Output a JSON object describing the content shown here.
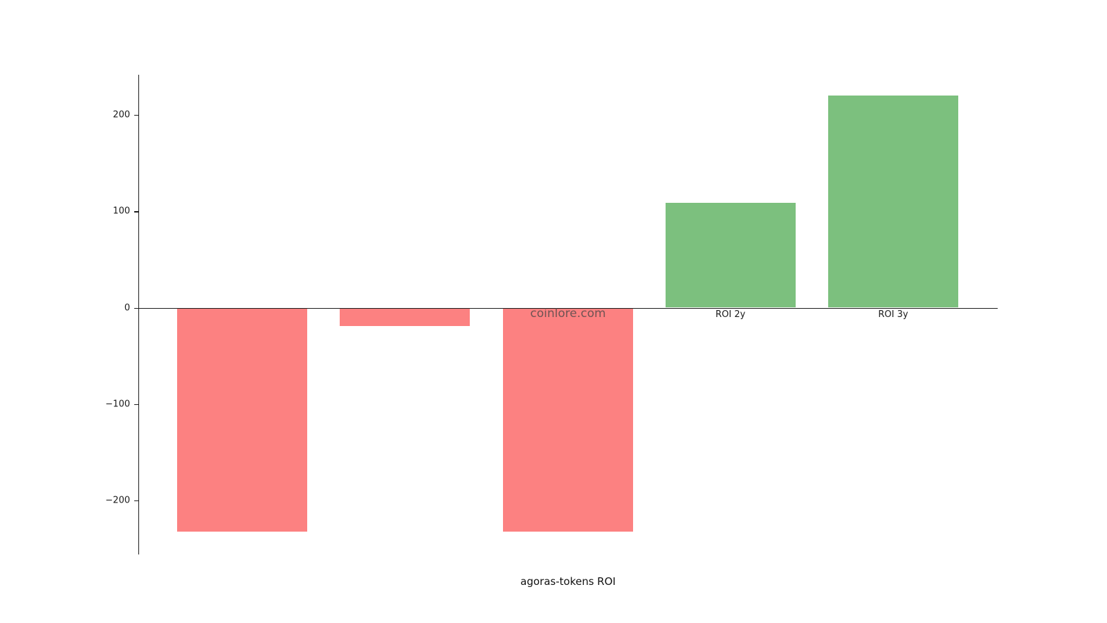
{
  "page": {
    "background": "#ffffff"
  },
  "chart_data": {
    "type": "bar",
    "title": "",
    "xlabel": "agoras-tokens ROI",
    "ylabel": "",
    "categories": [
      "",
      "",
      "",
      "ROI 2y",
      "ROI 3y"
    ],
    "values": [
      -232,
      -19,
      -232,
      109,
      220
    ],
    "yticks": [
      200,
      100,
      0,
      -100,
      -200
    ],
    "ytick_labels": [
      "200",
      "100",
      "0",
      "−100",
      "−200"
    ],
    "ylim": [
      -255,
      242
    ],
    "grid": false,
    "legend_position": "none",
    "bar_color_positive": "#7cc07e",
    "bar_color_negative": "#fc8181",
    "axis_color": "#1a1a1a",
    "watermark": "coinlore.com",
    "watermark_color": "rgba(70,70,70,0.78)"
  }
}
